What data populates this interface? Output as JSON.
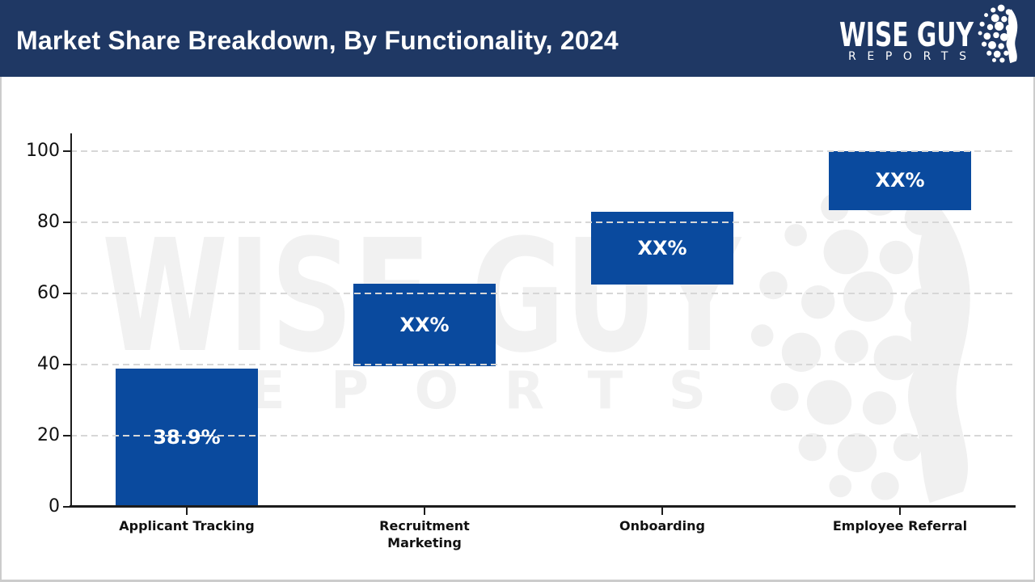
{
  "header": {
    "title": "Market Share Breakdown, By Functionality, 2024",
    "logo": {
      "line1": "WISE GUY",
      "line2": "REPORTS"
    }
  },
  "watermark": {
    "line1": "WISE GUY",
    "line2": "REPORTS"
  },
  "colors": {
    "header_bg": "#1f3864",
    "bar": "#0a4a9e",
    "grid": "#d7d7d7",
    "axis": "#1c1c1c",
    "watermark": "#f1f1f1",
    "bar_label": "#ffffff"
  },
  "chart_data": {
    "type": "bar",
    "subtype": "waterfall",
    "title": "Market Share Breakdown, By Functionality, 2024",
    "xlabel": "",
    "ylabel": "",
    "ylim": [
      0,
      104
    ],
    "yticks": [
      0,
      20,
      40,
      60,
      80,
      100
    ],
    "grid": "horizontal-dashed",
    "legend": "none",
    "bar_color": "#0a4a9e",
    "categories": [
      {
        "slug": "applicant-tracking",
        "lines": [
          "Applicant Tracking"
        ]
      },
      {
        "slug": "recruitment-marketing",
        "lines": [
          "Recruitment",
          "Marketing"
        ]
      },
      {
        "slug": "onboarding",
        "lines": [
          "Onboarding"
        ]
      },
      {
        "slug": "employee-referral",
        "lines": [
          "Employee Referral"
        ]
      }
    ],
    "segments": [
      {
        "category": "Applicant Tracking",
        "start": 0,
        "end": 38.9,
        "label": "38.9%"
      },
      {
        "category": "Recruitment Marketing",
        "start": 39.5,
        "end": 62.7,
        "label": "XX%"
      },
      {
        "category": "Onboarding",
        "start": 62.5,
        "end": 82.9,
        "label": "XX%"
      },
      {
        "category": "Employee Referral",
        "start": 83.3,
        "end": 100,
        "label": "XX%"
      }
    ]
  }
}
